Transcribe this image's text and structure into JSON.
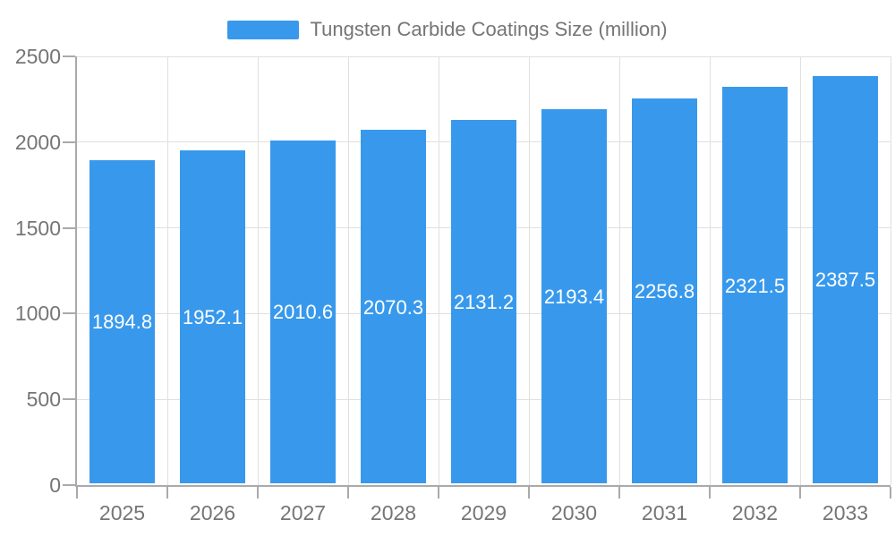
{
  "chart_data": {
    "type": "bar",
    "legend": "Tungsten Carbide Coatings Size (million)",
    "series_name": "Tungsten Carbide Coatings Size (million)",
    "categories": [
      "2025",
      "2026",
      "2027",
      "2028",
      "2029",
      "2030",
      "2031",
      "2032",
      "2033"
    ],
    "values": [
      1894.8,
      1952.1,
      2010.6,
      2070.3,
      2131.2,
      2193.4,
      2256.8,
      2321.5,
      2387.5
    ],
    "value_labels": [
      "1894.8",
      "1952.1",
      "2010.6",
      "2070.3",
      "2131.2",
      "2193.4",
      "2256.8",
      "2321.5",
      "2387.5"
    ],
    "ylim": [
      0,
      2500
    ],
    "yticks": [
      0,
      500,
      1000,
      1500,
      2000,
      2500
    ],
    "ytick_labels": [
      "0",
      "500",
      "1000",
      "1500",
      "2000",
      "2500"
    ],
    "grid": true,
    "legend_position": "top-center",
    "label_position": "inside-middle",
    "colors": {
      "bar": "#3899ec",
      "grid": "#e0e0e0",
      "axis": "#aaaaaa",
      "text": "#757575",
      "value_label": "#ffffff",
      "background": "#ffffff"
    }
  }
}
